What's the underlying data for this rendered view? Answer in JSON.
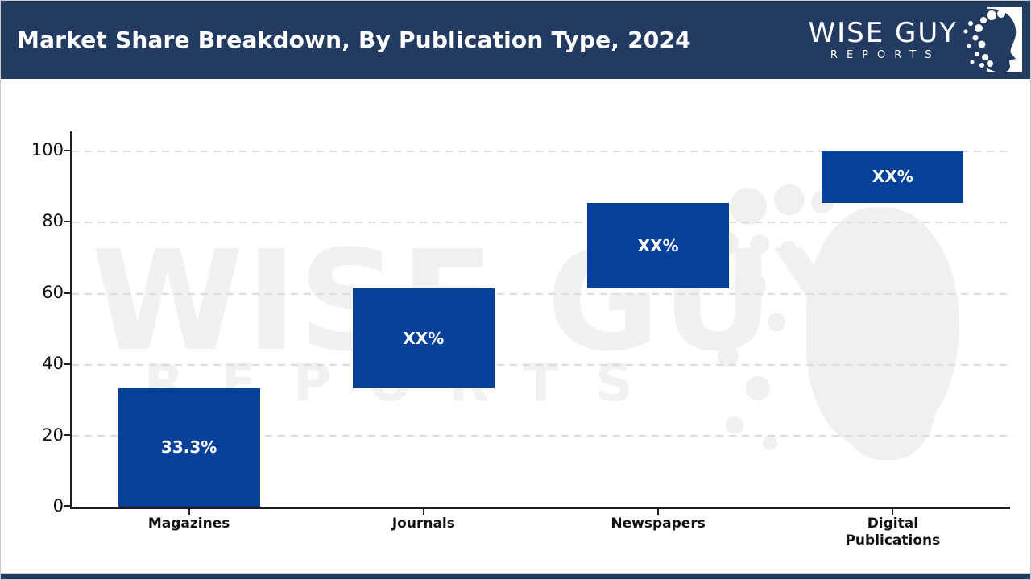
{
  "header": {
    "title": "Market Share Breakdown, By Publication Type, 2024",
    "bg_color": "#233a61",
    "logo": {
      "line1": "WISE GUY",
      "line2": "REPORTS"
    }
  },
  "watermark": {
    "line1": "WISE GUY",
    "line2": "REPORTS"
  },
  "footer": {
    "bg_color": "#233a61"
  },
  "chart_data": {
    "type": "bar",
    "subtype": "waterfall-floating-bars",
    "title": "Market Share Breakdown, By Publication Type, 2024",
    "xlabel": "",
    "ylabel": "",
    "ylim": [
      0,
      105
    ],
    "yticks": [
      "0",
      "20",
      "40",
      "60",
      "80",
      "100"
    ],
    "grid": "horizontal dashed",
    "legend": "none",
    "bar_color": "#05419b",
    "label_color": "#ffffff",
    "categories": [
      "Magazines",
      "Journals",
      "Newspapers",
      "Digital Publications"
    ],
    "segments": [
      {
        "category": "Magazines",
        "start": 0,
        "end": 33.3,
        "size": 33.3,
        "label": "33.3%"
      },
      {
        "category": "Journals",
        "start": 33.3,
        "end": 61.4,
        "size": 28.1,
        "label": "XX%"
      },
      {
        "category": "Newspapers",
        "start": 61.4,
        "end": 85.3,
        "size": 23.9,
        "label": "XX%"
      },
      {
        "category": "Digital Publications",
        "start": 85.3,
        "end": 100,
        "size": 14.7,
        "label": "XX%"
      }
    ]
  }
}
